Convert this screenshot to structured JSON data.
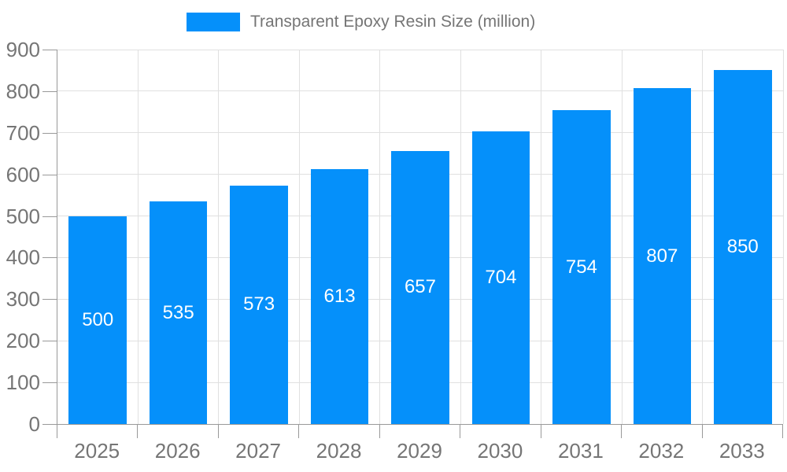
{
  "chart_data": {
    "type": "bar",
    "categories": [
      "2025",
      "2026",
      "2027",
      "2028",
      "2029",
      "2030",
      "2031",
      "2032",
      "2033"
    ],
    "series": [
      {
        "name": "Transparent Epoxy Resin Size (million)",
        "values": [
          500,
          535,
          573,
          613,
          657,
          704,
          754,
          807,
          850
        ],
        "color": "#0590fa"
      }
    ],
    "title": "",
    "xlabel": "",
    "ylabel": "",
    "ylim": [
      0,
      900
    ],
    "yticks": [
      0,
      100,
      200,
      300,
      400,
      500,
      600,
      700,
      800,
      900
    ],
    "grid": true,
    "legend_position": "top-center",
    "value_label_position": "inside-center"
  },
  "colors": {
    "bar": "#0590fa",
    "axis": "#999999",
    "grid": "#e0e0e0",
    "label": "#757575",
    "value_label": "#ffffff",
    "background": "#ffffff"
  }
}
